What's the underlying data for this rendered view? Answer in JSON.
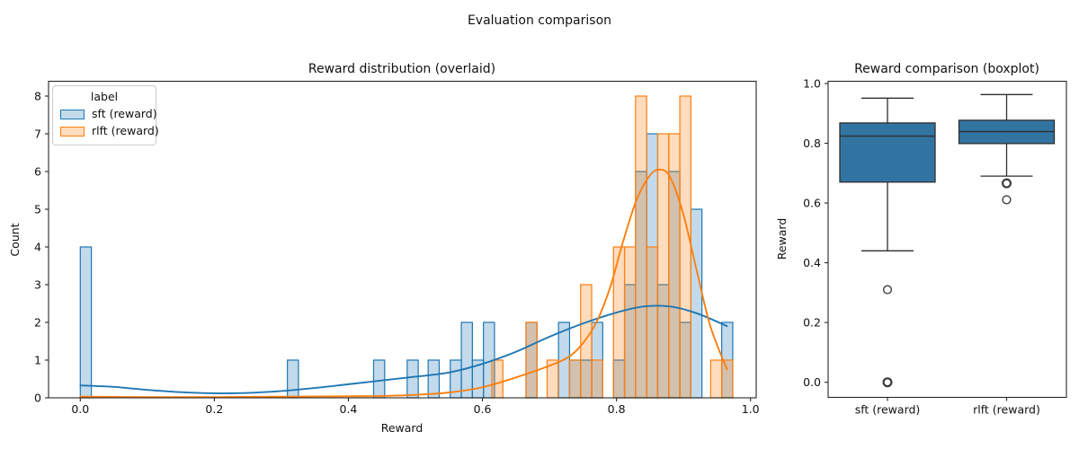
{
  "figure": {
    "suptitle": "Evaluation comparison",
    "background": "#ffffff"
  },
  "chart_data": [
    {
      "type": "histogram",
      "title": "Reward distribution (overlaid)",
      "xlabel": "Reward",
      "ylabel": "Count",
      "xlim": [
        -0.048,
        1.009
      ],
      "ylim": [
        0,
        8.42
      ],
      "xticks": [
        "0.0",
        "0.2",
        "0.4",
        "0.6",
        "0.8",
        "1.0"
      ],
      "xtick_values": [
        0.0,
        0.2,
        0.4,
        0.6,
        0.8,
        1.0
      ],
      "yticks": [
        "0",
        "1",
        "2",
        "3",
        "4",
        "5",
        "6",
        "7",
        "8"
      ],
      "ytick_values": [
        0,
        1,
        2,
        3,
        4,
        5,
        6,
        7,
        8
      ],
      "grid": false,
      "legend_title": "label",
      "legend_position": "upper left",
      "bin_width": 0.0165,
      "series": [
        {
          "key": "sft",
          "name": "sft (reward)",
          "color": "#1f77b4",
          "fill_alpha": 0.27,
          "bars": [
            [
              0.0,
              4
            ],
            [
              0.309,
              1
            ],
            [
              0.4376,
              1
            ],
            [
              0.4877,
              1
            ],
            [
              0.519,
              1
            ],
            [
              0.552,
              1
            ],
            [
              0.5685,
              2
            ],
            [
              0.585,
              1
            ],
            [
              0.6015,
              2
            ],
            [
              0.665,
              2
            ],
            [
              0.7135,
              2
            ],
            [
              0.73,
              1
            ],
            [
              0.7465,
              1
            ],
            [
              0.763,
              2
            ],
            [
              0.7955,
              1
            ],
            [
              0.812,
              3
            ],
            [
              0.8285,
              6
            ],
            [
              0.845,
              7
            ],
            [
              0.8615,
              3
            ],
            [
              0.878,
              6
            ],
            [
              0.8945,
              2
            ],
            [
              0.911,
              5
            ],
            [
              0.957,
              2
            ]
          ],
          "kde": [
            [
              0.0,
              0.33
            ],
            [
              0.05,
              0.29
            ],
            [
              0.1,
              0.21
            ],
            [
              0.15,
              0.15
            ],
            [
              0.2,
              0.12
            ],
            [
              0.25,
              0.13
            ],
            [
              0.3,
              0.18
            ],
            [
              0.35,
              0.26
            ],
            [
              0.4,
              0.36
            ],
            [
              0.45,
              0.46
            ],
            [
              0.5,
              0.56
            ],
            [
              0.55,
              0.67
            ],
            [
              0.6,
              0.9
            ],
            [
              0.65,
              1.22
            ],
            [
              0.7,
              1.62
            ],
            [
              0.75,
              1.97
            ],
            [
              0.8,
              2.26
            ],
            [
              0.84,
              2.42
            ],
            [
              0.88,
              2.42
            ],
            [
              0.92,
              2.24
            ],
            [
              0.965,
              1.9
            ]
          ]
        },
        {
          "key": "rlft",
          "name": "rlft (reward)",
          "color": "#ff7f0e",
          "fill_alpha": 0.27,
          "bars": [
            [
              0.614,
              1
            ],
            [
              0.665,
              2
            ],
            [
              0.6965,
              1
            ],
            [
              0.73,
              1
            ],
            [
              0.7465,
              3
            ],
            [
              0.763,
              1
            ],
            [
              0.7955,
              4
            ],
            [
              0.812,
              4
            ],
            [
              0.8285,
              8
            ],
            [
              0.845,
              4
            ],
            [
              0.8615,
              7
            ],
            [
              0.878,
              7
            ],
            [
              0.8945,
              8
            ],
            [
              0.9405,
              1
            ],
            [
              0.957,
              1
            ]
          ],
          "kde": [
            [
              0.0,
              0.03
            ],
            [
              0.1,
              0.02
            ],
            [
              0.2,
              0.02
            ],
            [
              0.3,
              0.03
            ],
            [
              0.4,
              0.04
            ],
            [
              0.45,
              0.05
            ],
            [
              0.5,
              0.08
            ],
            [
              0.55,
              0.14
            ],
            [
              0.6,
              0.28
            ],
            [
              0.65,
              0.54
            ],
            [
              0.7,
              0.85
            ],
            [
              0.73,
              1.1
            ],
            [
              0.75,
              1.45
            ],
            [
              0.77,
              2.0
            ],
            [
              0.79,
              2.9
            ],
            [
              0.81,
              4.15
            ],
            [
              0.83,
              5.25
            ],
            [
              0.85,
              5.9
            ],
            [
              0.865,
              6.05
            ],
            [
              0.88,
              5.85
            ],
            [
              0.9,
              4.85
            ],
            [
              0.92,
              3.35
            ],
            [
              0.94,
              1.9
            ],
            [
              0.965,
              0.75
            ]
          ]
        }
      ]
    },
    {
      "type": "boxplot",
      "title": "Reward comparison (boxplot)",
      "xlabel": "",
      "ylabel": "Reward",
      "ylim": [
        -0.05,
        1.006
      ],
      "yticks": [
        "0.0",
        "0.2",
        "0.4",
        "0.6",
        "0.8",
        "1.0"
      ],
      "ytick_values": [
        0.0,
        0.2,
        0.4,
        0.6,
        0.8,
        1.0
      ],
      "grid": false,
      "categories": [
        "sft (reward)",
        "rlft (reward)"
      ],
      "box_fill": "#3274a1",
      "box_edge": "#2e2e2e",
      "boxes": [
        {
          "label": "sft (reward)",
          "whisker_low": 0.44,
          "q1": 0.67,
          "median": 0.824,
          "q3": 0.868,
          "whisker_high": 0.951,
          "outliers": [
            0.31,
            0.0,
            0.0,
            0.0,
            0.0
          ]
        },
        {
          "label": "rlft (reward)",
          "whisker_low": 0.69,
          "q1": 0.799,
          "median": 0.839,
          "q3": 0.877,
          "whisker_high": 0.963,
          "outliers": [
            0.666,
            0.666,
            0.611
          ]
        }
      ]
    }
  ]
}
